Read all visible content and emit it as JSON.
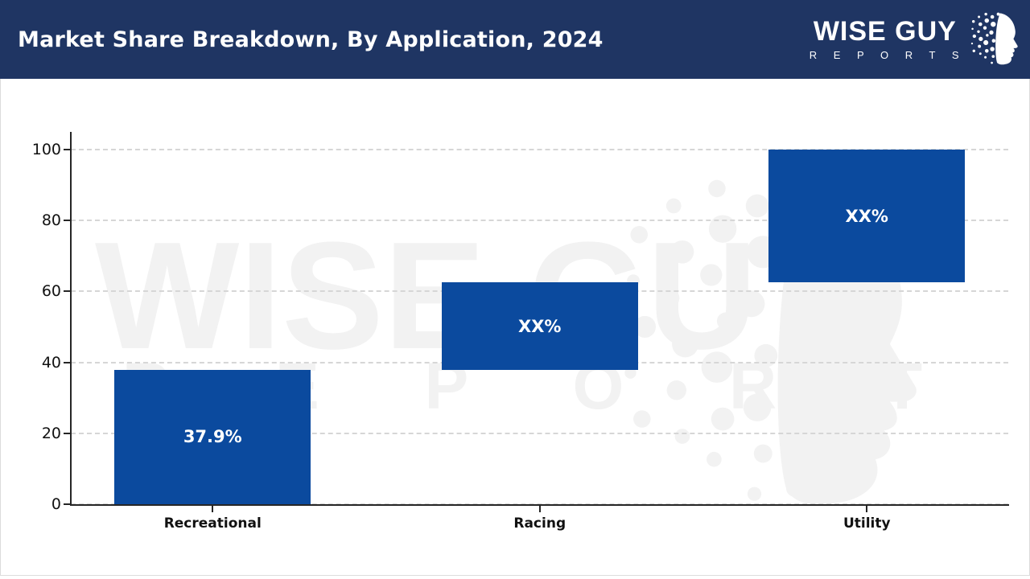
{
  "header": {
    "title": "Market Share Breakdown, By Application, 2024",
    "logo_line1": "WISE GUY",
    "logo_line2": "R E P O R T S"
  },
  "watermark": {
    "line1": "WISE GUY",
    "line2": "R E P O R T S"
  },
  "colors": {
    "header_bg": "#1f3563",
    "bar": "#0b4a9e",
    "bar_label": "#ffffff",
    "grid": "#d6d6d6",
    "axis": "#262626",
    "watermark": "#f2f2f2"
  },
  "chart_data": {
    "type": "bar",
    "variant": "waterfall",
    "title": "Market Share Breakdown, By Application, 2024",
    "categories": [
      "Recreational",
      "Racing",
      "Utility"
    ],
    "segments": [
      {
        "category": "Recreational",
        "start": 0,
        "end": 37.9,
        "label": "37.9%"
      },
      {
        "category": "Racing",
        "start": 37.9,
        "end": 62.5,
        "label": "XX%"
      },
      {
        "category": "Utility",
        "start": 62.5,
        "end": 100,
        "label": "XX%"
      }
    ],
    "yticks": [
      0,
      20,
      40,
      60,
      80,
      100
    ],
    "ylim": [
      0,
      105
    ],
    "xlabel": "",
    "ylabel": "",
    "grid": "horizontal-dashed",
    "legend": "none",
    "bar_color": "#0b4a9e"
  }
}
